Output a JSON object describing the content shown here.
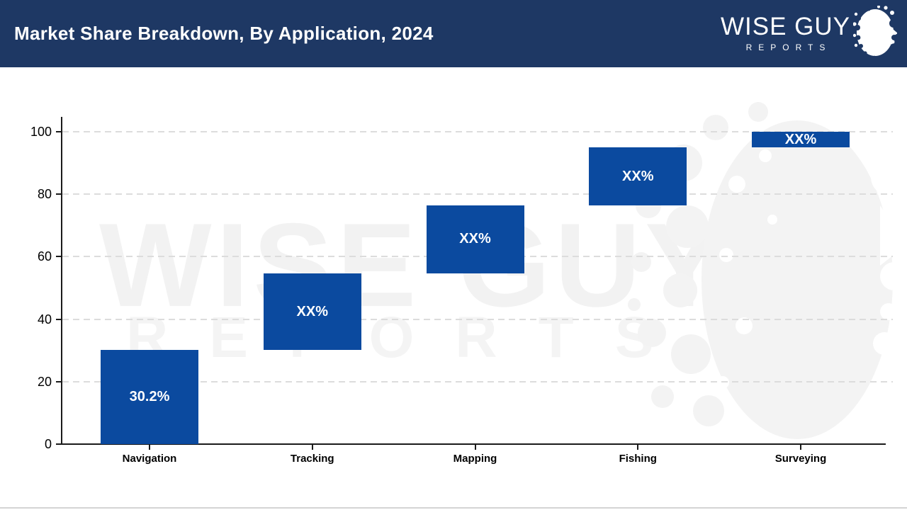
{
  "header": {
    "title": "Market Share Breakdown, By Application, 2024",
    "bg_color": "#1e3864",
    "logo": {
      "line1": "WISE GUY",
      "line2": "REPORTS"
    }
  },
  "watermark": {
    "line1": "WISE GUY",
    "line2": "REPORTS"
  },
  "chart_data": {
    "type": "bar",
    "subtype": "waterfall",
    "title": "Market Share Breakdown, By Application, 2024",
    "xlabel": "",
    "ylabel": "",
    "categories": [
      "Navigation",
      "Tracking",
      "Mapping",
      "Fishing",
      "Surveying"
    ],
    "segments": [
      {
        "category": "Navigation",
        "start": 0,
        "end": 30.2,
        "label": "30.2%"
      },
      {
        "category": "Tracking",
        "start": 30.2,
        "end": 54.6,
        "label": "XX%"
      },
      {
        "category": "Mapping",
        "start": 54.6,
        "end": 76.5,
        "label": "XX%"
      },
      {
        "category": "Fishing",
        "start": 76.5,
        "end": 94.9,
        "label": "XX%"
      },
      {
        "category": "Surveying",
        "start": 94.9,
        "end": 100,
        "label": "XX%"
      }
    ],
    "yticks": [
      0,
      20,
      40,
      60,
      80,
      100
    ],
    "ylim": [
      0,
      105
    ],
    "grid": "horizontal-dashed",
    "legend": "none",
    "bar_color": "#0b4a9f",
    "bar_label_color": "#ffffff",
    "gridline_color": "#dcdcdc"
  }
}
